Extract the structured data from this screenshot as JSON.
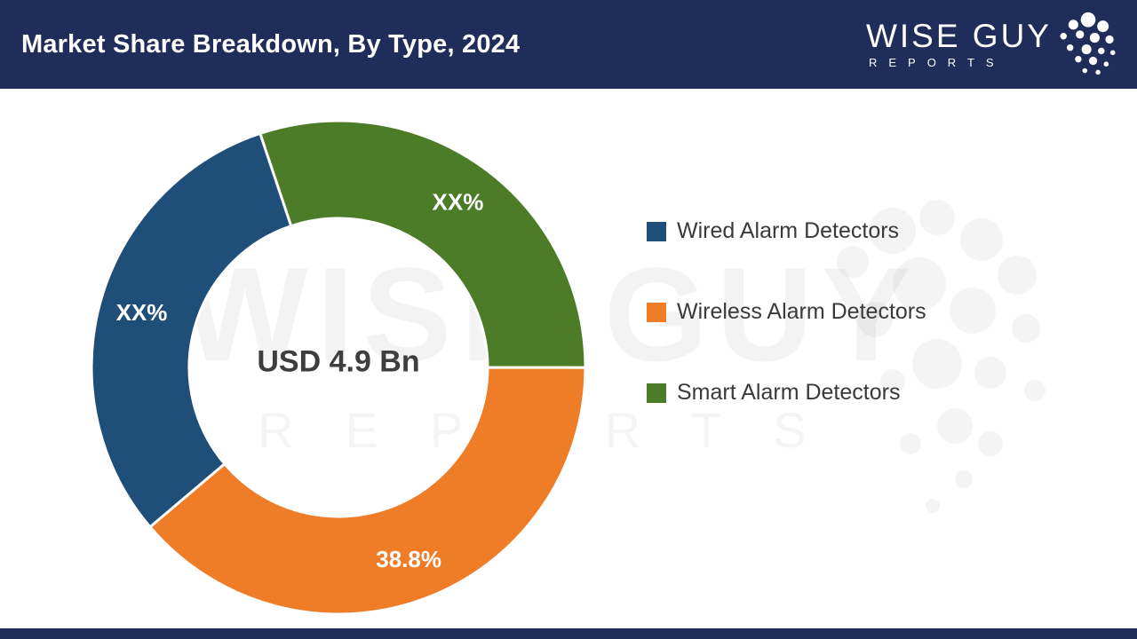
{
  "header": {
    "title": "Market Share Breakdown, By Type, 2024",
    "logo": {
      "wordmark": "WISE GUY",
      "subtitle": "REPORTS"
    }
  },
  "chart_data": {
    "type": "donut",
    "title": "Market Share Breakdown, By Type, 2024",
    "center_label": "USD 4.9 Bn",
    "start_angle_deg": -18.5,
    "legend_position": "right",
    "segments": [
      {
        "name": "Smart Alarm Detectors",
        "value": 30.15,
        "display_label": "XX%",
        "color": "#4c7c28"
      },
      {
        "name": "Wireless Alarm Detectors",
        "value": 38.8,
        "display_label": "38.8%",
        "color": "#ef7d28"
      },
      {
        "name": "Wired Alarm Detectors",
        "value": 31.05,
        "display_label": "XX%",
        "color": "#1f4e79"
      }
    ]
  },
  "legend": {
    "items": [
      {
        "label": "Wired Alarm Detectors",
        "color": "#1f4e79"
      },
      {
        "label": "Wireless Alarm Detectors",
        "color": "#ef7d28"
      },
      {
        "label": "Smart Alarm Detectors",
        "color": "#4c7c28"
      }
    ]
  },
  "watermark": {
    "line1": "WISE GUY",
    "line2": "REPORTS"
  },
  "colors": {
    "header_bg": "#1f2d5a",
    "footer_bg": "#1f2d5a",
    "center_text": "#3e3e3e"
  }
}
